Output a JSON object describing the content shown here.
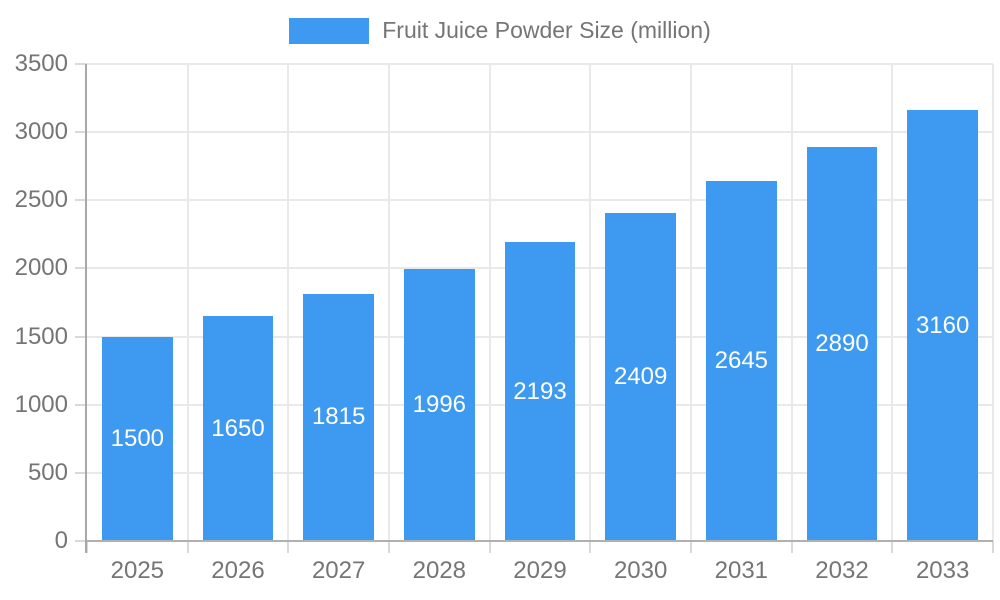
{
  "legend": {
    "label": "Fruit Juice Powder Size (million)"
  },
  "chart_data": {
    "type": "bar",
    "title": "Fruit Juice Powder Size (million)",
    "categories": [
      "2025",
      "2026",
      "2027",
      "2028",
      "2029",
      "2030",
      "2031",
      "2032",
      "2033"
    ],
    "values": [
      1500,
      1650,
      1815,
      1996,
      2193,
      2409,
      2645,
      2890,
      3160
    ],
    "series_name": "Fruit Juice Powder Size (million)",
    "xlabel": "",
    "ylabel": "",
    "ylim": [
      0,
      3500
    ],
    "y_ticks": [
      0,
      500,
      1000,
      1500,
      2000,
      2500,
      3000,
      3500
    ],
    "grid": true,
    "legend_position": "top",
    "bar_labels_inside": true,
    "colors": {
      "bar": "#3D9AF0",
      "bar_label": "#FFFFFF",
      "axis_text": "#757575",
      "grid": "#E9E9E9",
      "axis_line": "#B0B0B0",
      "tick": "#D9D9D9"
    }
  }
}
